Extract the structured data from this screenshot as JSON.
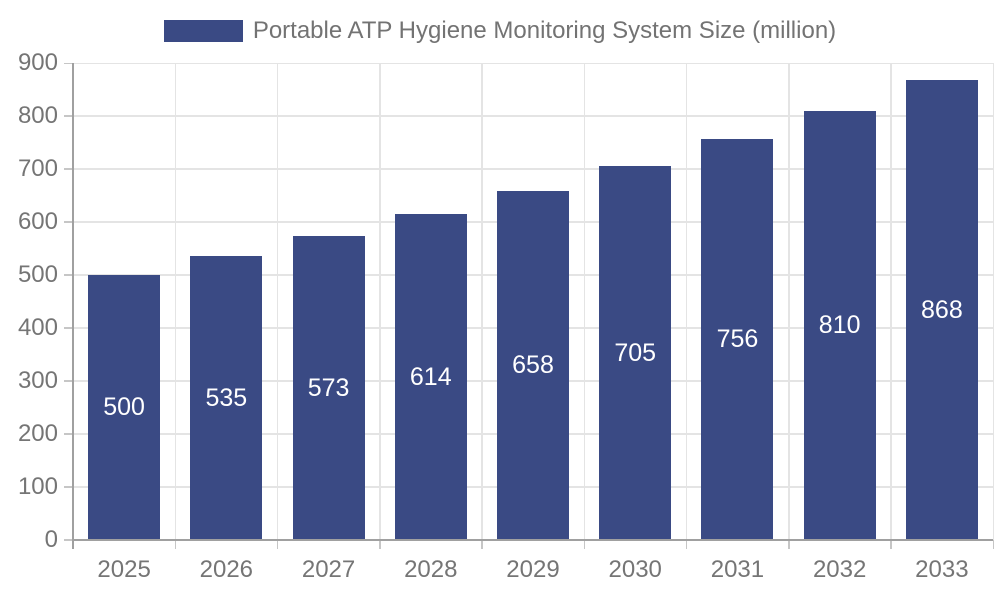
{
  "chart_data": {
    "type": "bar",
    "title": "Portable ATP Hygiene Monitoring System Size (million)",
    "legend": [
      {
        "label": "Portable ATP Hygiene Monitoring System Size (million)"
      }
    ],
    "legend_position": "top-center",
    "categories": [
      "2025",
      "2026",
      "2027",
      "2028",
      "2029",
      "2030",
      "2031",
      "2032",
      "2033"
    ],
    "values": [
      500,
      535,
      573,
      614,
      658,
      705,
      756,
      810,
      868
    ],
    "value_labels": [
      "500",
      "535",
      "573",
      "614",
      "658",
      "705",
      "756",
      "810",
      "868"
    ],
    "xlabel": "",
    "ylabel": "",
    "ylim": [
      0,
      900
    ],
    "ytick_interval": 100,
    "yticks": [
      "0",
      "100",
      "200",
      "300",
      "400",
      "500",
      "600",
      "700",
      "800",
      "900"
    ],
    "grid": true,
    "colors": {
      "bar": "#3A4A84",
      "axis_line": "#a0a0a0",
      "gridline": "#e4e4e4",
      "tick": "#c6c6c6",
      "axis_text": "#757575",
      "legend_text": "#737373",
      "value_label_text": "#ffffff",
      "background": "#ffffff"
    }
  }
}
